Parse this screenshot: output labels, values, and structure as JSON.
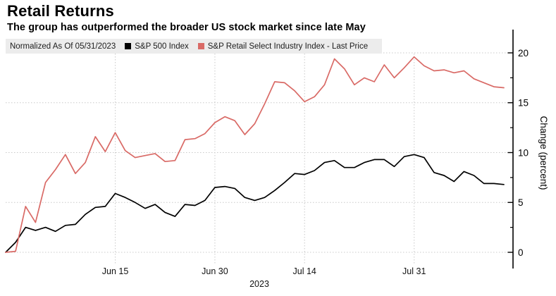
{
  "header": {
    "title": "Retail Returns",
    "subtitle": "The group has outperformed the broader US stock market since late May"
  },
  "legend": {
    "note": "Normalized As Of 05/31/2023",
    "items": [
      {
        "label": "S&P 500 Index",
        "color": "#000000"
      },
      {
        "label": "S&P Retail Select Industry Index - Last Price",
        "color": "#d96a66"
      }
    ]
  },
  "chart_data": {
    "type": "line",
    "title": "Retail Returns",
    "ylabel": "Change (percent)",
    "xlabel": "",
    "year_label": "2023",
    "grid": "dotted",
    "legend_position": "top",
    "y_axis_side": "right",
    "ylim": [
      -1.5,
      22.3
    ],
    "y_ticks": [
      0,
      5,
      10,
      15,
      20
    ],
    "y_minor_step": 2.5,
    "x": [
      "05/31",
      "06/01",
      "06/02",
      "06/05",
      "06/06",
      "06/07",
      "06/08",
      "06/09",
      "06/12",
      "06/13",
      "06/14",
      "06/15",
      "06/16",
      "06/20",
      "06/21",
      "06/22",
      "06/23",
      "06/26",
      "06/27",
      "06/28",
      "06/29",
      "06/30",
      "07/03",
      "07/05",
      "07/06",
      "07/07",
      "07/10",
      "07/11",
      "07/12",
      "07/13",
      "07/14",
      "07/17",
      "07/18",
      "07/19",
      "07/20",
      "07/21",
      "07/24",
      "07/25",
      "07/26",
      "07/27",
      "07/28",
      "07/31",
      "08/01",
      "08/02",
      "08/03",
      "08/04",
      "08/07",
      "08/08",
      "08/09",
      "08/10",
      "08/11"
    ],
    "x_ticks": [
      {
        "index": 11,
        "label": "Jun 15"
      },
      {
        "index": 21,
        "label": "Jun 30"
      },
      {
        "index": 30,
        "label": "Jul 14"
      },
      {
        "index": 41,
        "label": "Jul 31"
      }
    ],
    "series": [
      {
        "name": "S&P 500 Index",
        "color": "#000000",
        "values": [
          0.0,
          1.0,
          2.5,
          2.2,
          2.5,
          2.1,
          2.7,
          2.8,
          3.8,
          4.5,
          4.6,
          5.9,
          5.5,
          5.0,
          4.4,
          4.8,
          4.0,
          3.6,
          4.8,
          4.7,
          5.2,
          6.5,
          6.6,
          6.4,
          5.5,
          5.2,
          5.5,
          6.2,
          7.0,
          7.9,
          7.8,
          8.2,
          9.0,
          9.2,
          8.5,
          8.5,
          9.0,
          9.3,
          9.3,
          8.6,
          9.6,
          9.8,
          9.5,
          8.0,
          7.7,
          7.1,
          8.1,
          7.7,
          6.9,
          6.9,
          6.8
        ]
      },
      {
        "name": "S&P Retail Select Industry Index - Last Price",
        "color": "#d96a66",
        "values": [
          0.0,
          0.1,
          4.6,
          3.0,
          7.0,
          8.3,
          9.8,
          7.9,
          9.0,
          11.6,
          10.1,
          12.0,
          10.2,
          9.5,
          9.7,
          9.9,
          9.1,
          9.2,
          11.3,
          11.4,
          11.9,
          13.0,
          13.6,
          13.2,
          11.8,
          12.9,
          14.9,
          17.1,
          17.0,
          16.2,
          15.1,
          15.6,
          16.8,
          19.4,
          18.4,
          16.8,
          17.5,
          17.1,
          18.8,
          17.5,
          18.5,
          19.6,
          18.7,
          18.2,
          18.3,
          18.0,
          18.2,
          17.4,
          17.0,
          16.6,
          16.5
        ]
      }
    ]
  }
}
